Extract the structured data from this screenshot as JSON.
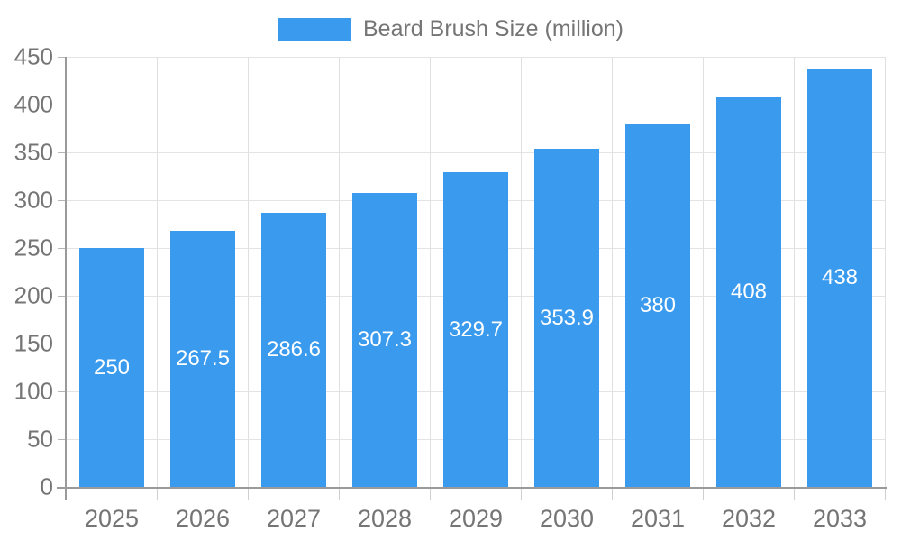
{
  "legend": {
    "label": "Beard Brush Size (million)"
  },
  "colors": {
    "bar": "#399AEE",
    "grid_h": "#e4e4e4",
    "grid_v": "#e0e0e0",
    "axis": "#9a9a9a",
    "axis_text": "#757575",
    "bar_label_text": "#ffffff"
  },
  "chart_data": {
    "type": "bar",
    "title": "",
    "legend": "Beard Brush Size (million)",
    "legend_position": "top-center",
    "categories": [
      "2025",
      "2026",
      "2027",
      "2028",
      "2029",
      "2030",
      "2031",
      "2032",
      "2033"
    ],
    "values": [
      250,
      267.5,
      286.6,
      307.3,
      329.7,
      353.9,
      380,
      408,
      438
    ],
    "data_labels": [
      "250",
      "267.5",
      "286.6",
      "307.3",
      "329.7",
      "353.9",
      "380",
      "408",
      "438"
    ],
    "data_label_position": "inside-center",
    "xlabel": "",
    "ylabel": "",
    "ylim": [
      0,
      450
    ],
    "ytick_step": 50,
    "ytick_labels": [
      "0",
      "50",
      "100",
      "150",
      "200",
      "250",
      "300",
      "350",
      "400",
      "450"
    ],
    "grid": true
  }
}
